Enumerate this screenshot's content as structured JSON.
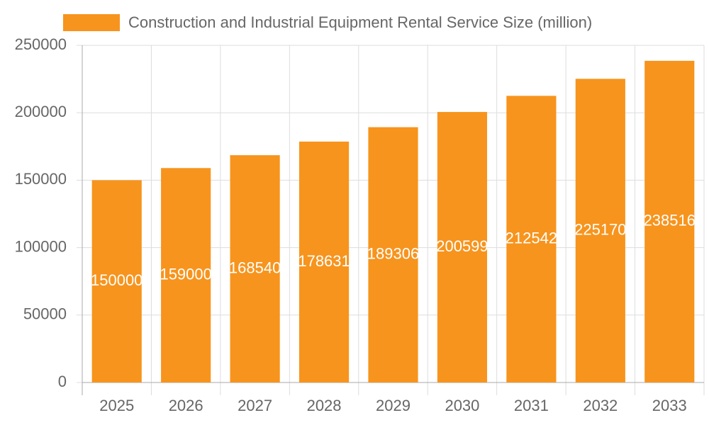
{
  "chart_data": {
    "type": "bar",
    "categories": [
      "2025",
      "2026",
      "2027",
      "2028",
      "2029",
      "2030",
      "2031",
      "2032",
      "2033"
    ],
    "series": [
      {
        "name": "Construction and Industrial Equipment Rental Service Size (million)",
        "color": "#f7941d",
        "values": [
          150000,
          159000,
          168540,
          178631,
          189306,
          200599,
          212542,
          225170,
          238516
        ]
      }
    ],
    "ylim": [
      0,
      250000
    ],
    "yticks": [
      0,
      50000,
      100000,
      150000,
      200000,
      250000
    ],
    "grid": true,
    "legend": "top"
  }
}
